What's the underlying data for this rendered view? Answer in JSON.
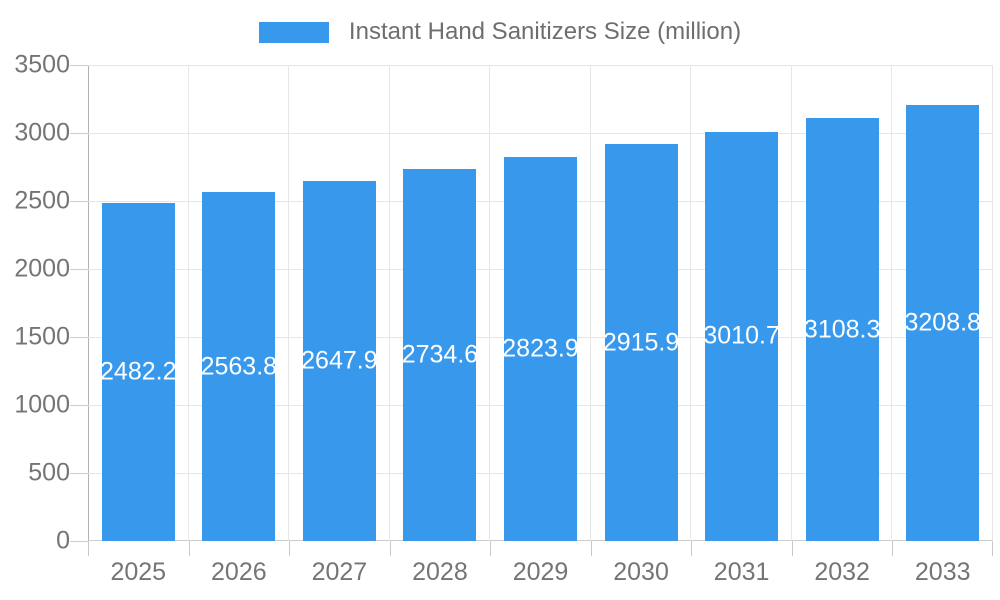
{
  "legend": {
    "label": "Instant Hand Sanitizers Size (million)"
  },
  "colors": {
    "bar": "#3899EC",
    "axis_text": "#757575",
    "legend_text": "#6e6e6e",
    "gridline": "#e6e6e6",
    "axis_line": "#b2b2b2",
    "bar_label": "#ffffff"
  },
  "chart_data": {
    "type": "bar",
    "title": "Instant Hand Sanitizers Size (million)",
    "categories": [
      "2025",
      "2026",
      "2027",
      "2028",
      "2029",
      "2030",
      "2031",
      "2032",
      "2033"
    ],
    "values": [
      2482.2,
      2563.8,
      2647.9,
      2734.6,
      2823.9,
      2915.9,
      3010.7,
      3108.3,
      3208.8
    ],
    "value_labels": [
      "2482.2",
      "2563.8",
      "2647.9",
      "2734.6",
      "2823.9",
      "2915.9",
      "3010.7",
      "3108.3",
      "3208.8"
    ],
    "xlabel": "",
    "ylabel": "",
    "ylim": [
      0,
      3500
    ],
    "ytick_step": 500,
    "ytick_labels": [
      "0",
      "500",
      "1000",
      "1500",
      "2000",
      "2500",
      "3000",
      "3500"
    ],
    "grid": true,
    "legend_position": "top",
    "value_label_position": "bar-center"
  }
}
